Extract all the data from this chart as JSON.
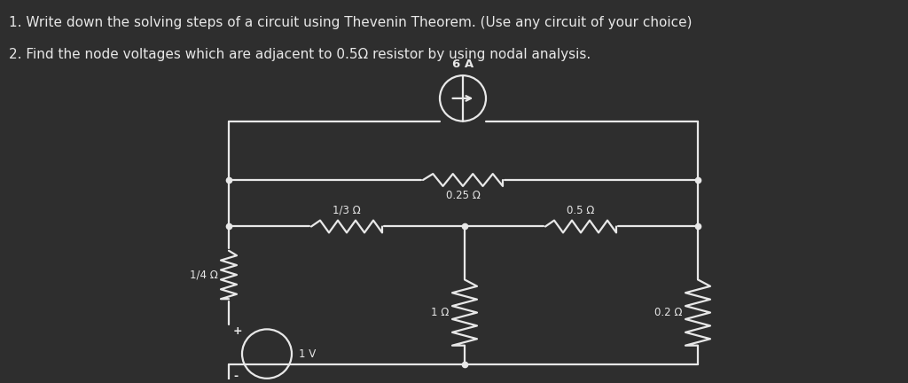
{
  "title1": "1. Write down the solving steps of a circuit using Thevenin Theorem. (Use any circuit of your choice)",
  "title2": "2. Find the node voltages which are adjacent to 0.5Ω resistor by using nodal analysis.",
  "bg_color": "#2e2e2e",
  "text_color": "#e8e8e8",
  "circuit_color": "#e8e8e8",
  "label_6A": "6 A",
  "label_025": "0.25 Ω",
  "label_13": "1/3 Ω",
  "label_05": "0.5 Ω",
  "label_14": "1/4 Ω",
  "label_1": "1 Ω",
  "label_02": "0.2 Ω",
  "label_1V": "1 V",
  "plus": "+",
  "minus": "-",
  "font_title": 11,
  "font_label": 9,
  "lw": 1.6
}
